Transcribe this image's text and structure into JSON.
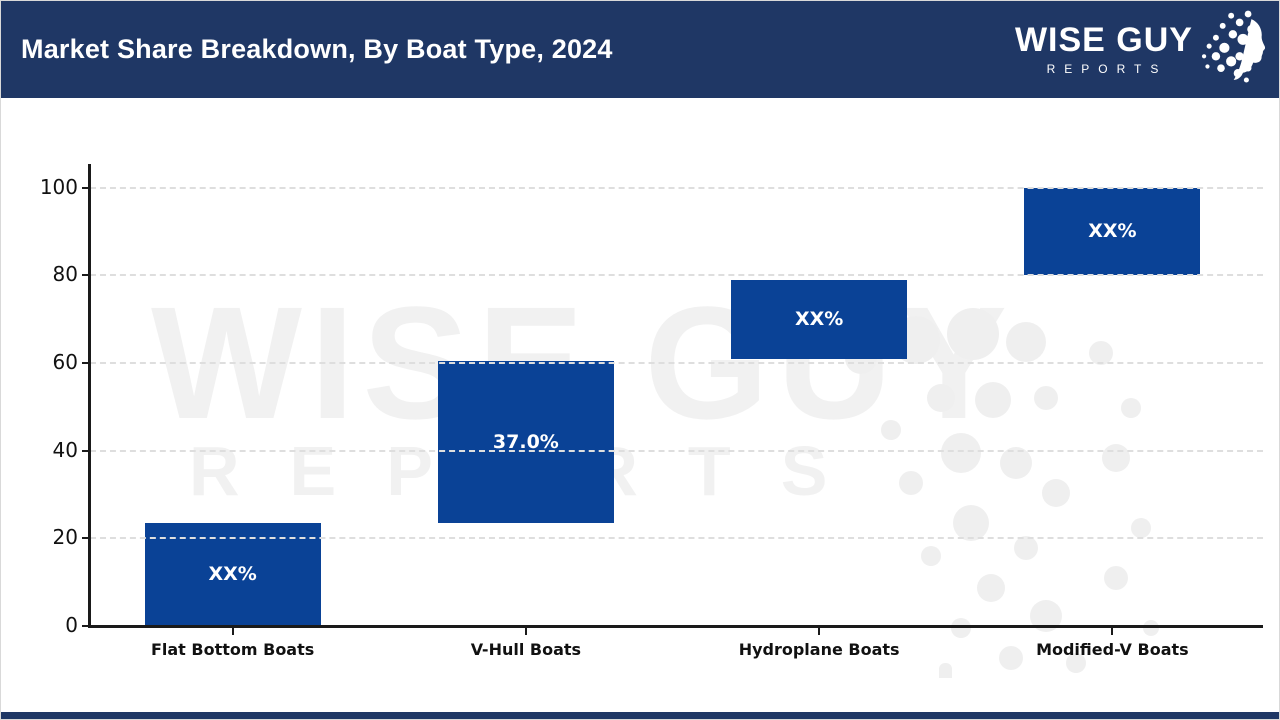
{
  "header": {
    "title": "Market Share Breakdown, By Boat Type, 2024",
    "logo": {
      "line1": "WISE GUY",
      "line2": "REPORTS"
    }
  },
  "watermark": {
    "line1": "WISE GUY",
    "line2": "REPORTS"
  },
  "footer": {},
  "colors": {
    "header_bg": "#1f3765",
    "bar": "#0a4296",
    "bar_label": "#ffffff",
    "gridline": "#dedede",
    "axis": "#1a1a1a",
    "watermark": "#f1f1f1"
  },
  "chart_data": {
    "type": "bar",
    "subtype": "waterfall",
    "title": "Market Share Breakdown, By Boat Type, 2024",
    "categories": [
      "Flat Bottom Boats",
      "V-Hull Boats",
      "Hydroplane Boats",
      "Modified-V Boats"
    ],
    "segments": [
      {
        "category": "Flat Bottom Boats",
        "start": 0,
        "end": 23.5,
        "label": "XX%"
      },
      {
        "category": "V-Hull Boats",
        "start": 23.5,
        "end": 60.5,
        "label": "37.0%",
        "value": 37.0
      },
      {
        "category": "Hydroplane Boats",
        "start": 61,
        "end": 79,
        "label": "XX%"
      },
      {
        "category": "Modified-V Boats",
        "start": 80,
        "end": 100,
        "label": "XX%"
      }
    ],
    "ylabel": "",
    "xlabel": "",
    "ylim": [
      0,
      105
    ],
    "yticks": [
      0,
      20,
      40,
      60,
      80,
      100
    ],
    "grid": "dashed-horizontal",
    "legend": "none",
    "bar_color": "#0a4296",
    "label_color": "#ffffff"
  }
}
